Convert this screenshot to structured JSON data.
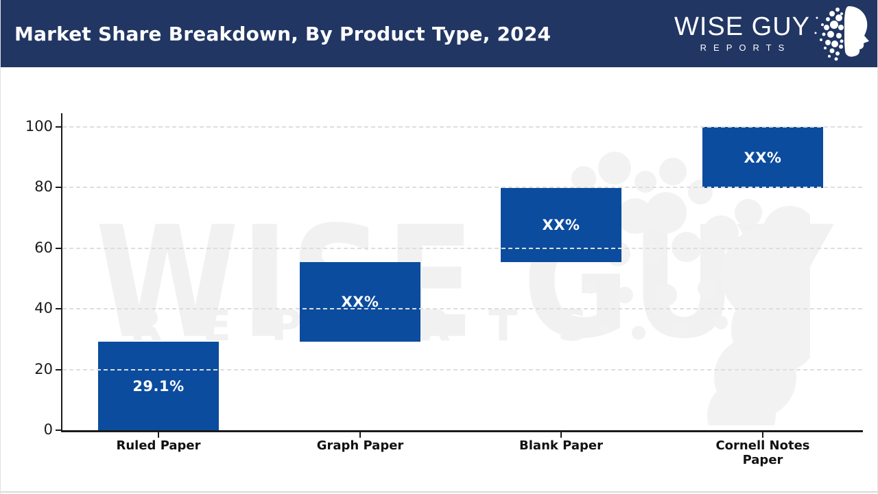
{
  "header": {
    "title": "Market Share Breakdown, By Product Type, 2024",
    "bg_color": "#213663",
    "logo": {
      "wordmark": "WISE GUY",
      "subtext": "REPORTS"
    }
  },
  "watermark": {
    "wordmark": "WISE GUY",
    "subtext": "REPORTS"
  },
  "chart_data": {
    "type": "bar",
    "variant": "waterfall",
    "title": "Market Share Breakdown, By Product Type, 2024",
    "categories": [
      "Ruled Paper",
      "Graph Paper",
      "Blank Paper",
      "Cornell Notes Paper"
    ],
    "bars": [
      {
        "category": "Ruled Paper",
        "start": 0,
        "end": 29.1,
        "value": 29.1,
        "label": "29.1%"
      },
      {
        "category": "Graph Paper",
        "start": 29.1,
        "end": 55.4,
        "value": 26.3,
        "label": "XX%"
      },
      {
        "category": "Blank Paper",
        "start": 55.4,
        "end": 79.8,
        "value": 24.4,
        "label": "XX%"
      },
      {
        "category": "Cornell Notes Paper",
        "start": 79.8,
        "end": 100,
        "value": 20.2,
        "label": "XX%"
      }
    ],
    "xlabel": "",
    "ylabel": "",
    "ylim": [
      0,
      100
    ],
    "yticks": [
      0,
      20,
      40,
      60,
      80,
      100
    ],
    "grid": "horizontal-dashed",
    "grid_over_bars": true,
    "legend": "none",
    "bar_color": "#0c4c9e",
    "bar_label_color": "#ffffff",
    "axis_color": "#1a1a1a",
    "gridline_color": "#dedede"
  }
}
